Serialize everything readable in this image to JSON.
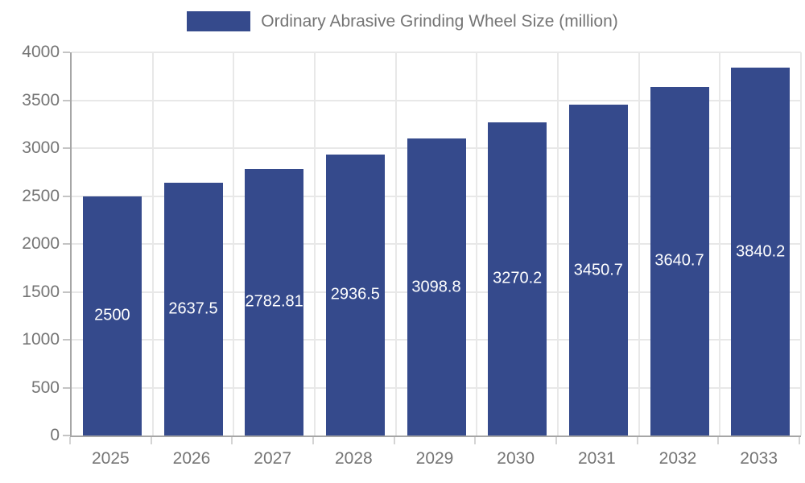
{
  "legend": {
    "label": "Ordinary Abrasive Grinding Wheel Size (million)"
  },
  "chart_data": {
    "type": "bar",
    "title": "",
    "series_name": "Ordinary Abrasive Grinding Wheel Size (million)",
    "categories": [
      "2025",
      "2026",
      "2027",
      "2028",
      "2029",
      "2030",
      "2031",
      "2032",
      "2033"
    ],
    "values": [
      2500,
      2637.5,
      2782.81,
      2936.5,
      3098.8,
      3270.2,
      3450.7,
      3640.7,
      3840.2
    ],
    "value_labels": [
      "2500",
      "2637.5",
      "2782.81",
      "2936.5",
      "3098.8",
      "3270.2",
      "3450.7",
      "3640.7",
      "3840.2"
    ],
    "xlabel": "",
    "ylabel": "",
    "ylim": [
      0,
      4000
    ],
    "yticks": [
      0,
      500,
      1000,
      1500,
      2000,
      2500,
      3000,
      3500,
      4000
    ],
    "grid": true,
    "legend_position": "top-center",
    "value_label_position": "inside-center",
    "colors": {
      "bar": "#354A8C",
      "value_label": "#FFFFFF",
      "axis_text": "#757575",
      "gridline": "#E8E8E8",
      "axis_line": "#A6A6A6"
    }
  }
}
